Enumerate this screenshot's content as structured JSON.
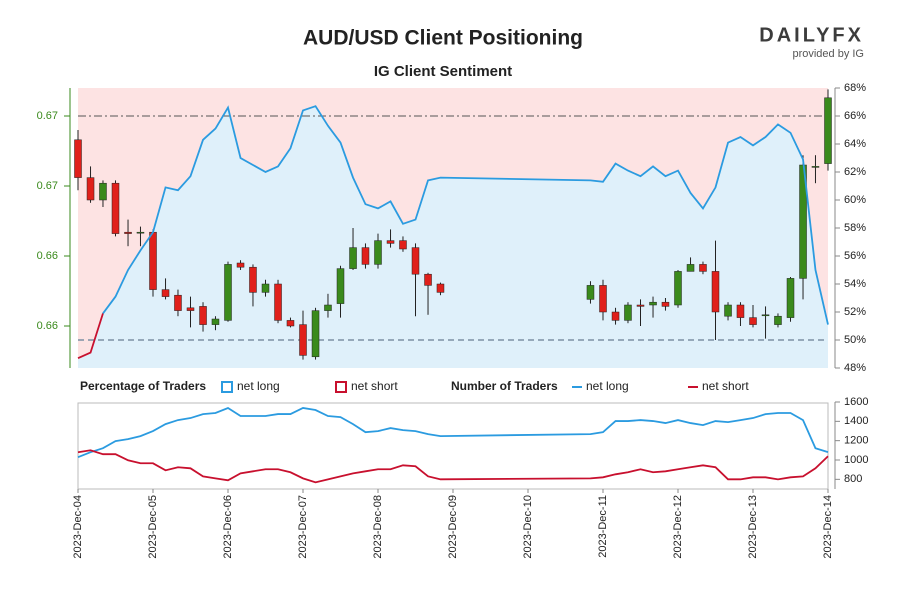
{
  "chart_data": [
    {
      "type": "candlestick",
      "title": "AUD/USD Client Positioning",
      "subtitle": "IG Client Sentiment",
      "logo": {
        "brand": "DAILYFX",
        "provided": "provided by IG"
      },
      "x": [
        0,
        0.167,
        0.333,
        0.5,
        0.667,
        0.833,
        1,
        1.167,
        1.333,
        1.5,
        1.667,
        1.833,
        2,
        2.167,
        2.333,
        2.5,
        2.667,
        2.833,
        3,
        3.167,
        3.333,
        3.5,
        3.667,
        3.833,
        4,
        4.167,
        4.333,
        4.5,
        4.667,
        4.833,
        6.833,
        7,
        7.167,
        7.333,
        7.5,
        7.667,
        7.833,
        8,
        8.167,
        8.333,
        8.5,
        8.667,
        8.833,
        9,
        9.167,
        9.333,
        9.5,
        9.667,
        9.833,
        10
      ],
      "open": [
        0.6683,
        0.6656,
        0.664,
        0.6652,
        0.6617,
        0.6617,
        0.6617,
        0.6576,
        0.6572,
        0.6563,
        0.6564,
        0.6551,
        0.6554,
        0.6595,
        0.6592,
        0.6574,
        0.658,
        0.6554,
        0.6551,
        0.6528,
        0.6561,
        0.6566,
        0.6591,
        0.6606,
        0.6594,
        0.6611,
        0.6611,
        0.6606,
        0.6587,
        0.658,
        0.6569,
        0.6579,
        0.656,
        0.6554,
        0.6565,
        0.6565,
        0.6567,
        0.6565,
        0.6589,
        0.6594,
        0.6589,
        0.6557,
        0.6565,
        0.6556,
        0.6558,
        0.6551,
        0.6556,
        0.6584,
        0.6664,
        0.6666
      ],
      "high": [
        0.669,
        0.6664,
        0.6654,
        0.6654,
        0.6626,
        0.6621,
        0.6619,
        0.6584,
        0.6576,
        0.6571,
        0.6567,
        0.6557,
        0.6596,
        0.6597,
        0.6594,
        0.6583,
        0.6583,
        0.6556,
        0.6561,
        0.6563,
        0.6573,
        0.6593,
        0.662,
        0.6609,
        0.6616,
        0.6619,
        0.6614,
        0.6609,
        0.6588,
        0.6581,
        0.6582,
        0.6583,
        0.6563,
        0.6567,
        0.6569,
        0.6571,
        0.657,
        0.659,
        0.6599,
        0.6596,
        0.6611,
        0.6567,
        0.6567,
        0.6565,
        0.6564,
        0.6559,
        0.6585,
        0.6672,
        0.6672,
        0.6719
      ],
      "low": [
        0.6647,
        0.6638,
        0.6635,
        0.6614,
        0.6607,
        0.6607,
        0.6571,
        0.6569,
        0.6557,
        0.6549,
        0.6546,
        0.6547,
        0.6553,
        0.659,
        0.6564,
        0.6571,
        0.6552,
        0.6549,
        0.6526,
        0.6526,
        0.6556,
        0.6556,
        0.659,
        0.6591,
        0.6591,
        0.6606,
        0.6603,
        0.6557,
        0.6558,
        0.6572,
        0.6566,
        0.6554,
        0.6551,
        0.6552,
        0.655,
        0.6556,
        0.6561,
        0.6563,
        0.6589,
        0.6587,
        0.654,
        0.6554,
        0.655,
        0.6549,
        0.6541,
        0.6549,
        0.6553,
        0.6569,
        0.6652,
        0.6661
      ],
      "close": [
        0.6656,
        0.664,
        0.6652,
        0.6616,
        0.6616,
        0.6617,
        0.6576,
        0.6571,
        0.6561,
        0.6561,
        0.6551,
        0.6555,
        0.6594,
        0.6592,
        0.6574,
        0.658,
        0.6554,
        0.655,
        0.6529,
        0.6561,
        0.6565,
        0.6591,
        0.6606,
        0.6594,
        0.6611,
        0.6609,
        0.6605,
        0.6587,
        0.6579,
        0.6574,
        0.6579,
        0.656,
        0.6554,
        0.6565,
        0.6564,
        0.6567,
        0.6564,
        0.6589,
        0.6594,
        0.6589,
        0.656,
        0.6565,
        0.6556,
        0.6551,
        0.6558,
        0.6557,
        0.6584,
        0.6665,
        0.6664,
        0.6713
      ],
      "up_color": "#3a8a1c",
      "down_color": "#e0201b",
      "xlim": [
        0,
        10
      ],
      "ylim": [
        0.652,
        0.672
      ],
      "yticks": [
        {
          "value": 0.67,
          "label": "0.67"
        },
        {
          "value": 0.665,
          "label": "0.67"
        },
        {
          "value": 0.66,
          "label": "0.66"
        },
        {
          "value": 0.655,
          "label": "0.66"
        }
      ],
      "y2lim": [
        48,
        68
      ],
      "y2ticks": [
        {
          "value": 48,
          "label": "48%"
        },
        {
          "value": 50,
          "label": "50%"
        },
        {
          "value": 52,
          "label": "52%"
        },
        {
          "value": 54,
          "label": "54%"
        },
        {
          "value": 56,
          "label": "56%"
        },
        {
          "value": 58,
          "label": "58%"
        },
        {
          "value": 60,
          "label": "60%"
        },
        {
          "value": 62,
          "label": "62%"
        },
        {
          "value": 64,
          "label": "64%"
        },
        {
          "value": 66,
          "label": "66%"
        },
        {
          "value": 68,
          "label": "68%"
        }
      ],
      "sentiment": {
        "axis": "y2",
        "color": "#2b9be0",
        "color_below": "#c8102e",
        "values": [
          48.7,
          49.1,
          51.9,
          53.1,
          55.0,
          56.4,
          57.7,
          60.9,
          60.7,
          61.7,
          64.3,
          65.1,
          66.6,
          63.0,
          62.5,
          62.0,
          62.4,
          63.7,
          66.4,
          66.7,
          65.3,
          64.1,
          61.6,
          59.7,
          59.4,
          59.9,
          58.3,
          58.6,
          61.4,
          61.6,
          61.4,
          61.3,
          62.6,
          62.1,
          61.7,
          62.4,
          61.7,
          62.1,
          60.5,
          59.4,
          60.9,
          64.1,
          64.5,
          63.9,
          64.5,
          65.4,
          64.8,
          62.9,
          55.0,
          51.1
        ]
      },
      "reference_lines": [
        {
          "value": 50,
          "axis": "y2",
          "style": "dashed",
          "color": "#7d8fa3"
        },
        {
          "value": 66,
          "axis": "y2",
          "style": "dashdot",
          "color": "#555555"
        }
      ],
      "legend_title": "Percentage of Traders",
      "areas": [
        {
          "name": "net long",
          "color": "#2b9be0",
          "fill": "#dff0fa"
        },
        {
          "name": "net short",
          "color": "#c8102e",
          "fill": "#fde3e3"
        }
      ]
    },
    {
      "type": "line",
      "legend_title": "Number of Traders",
      "x": [
        0,
        0.167,
        0.333,
        0.5,
        0.667,
        0.833,
        1,
        1.167,
        1.333,
        1.5,
        1.667,
        1.833,
        2,
        2.167,
        2.333,
        2.5,
        2.667,
        2.833,
        3,
        3.167,
        3.333,
        3.5,
        3.667,
        3.833,
        4,
        4.167,
        4.333,
        4.5,
        4.667,
        4.833,
        6.833,
        7,
        7.167,
        7.333,
        7.5,
        7.667,
        7.833,
        8,
        8.167,
        8.333,
        8.5,
        8.667,
        8.833,
        9,
        9.167,
        9.333,
        9.5,
        9.667,
        9.833,
        10
      ],
      "xlim": [
        0,
        10
      ],
      "xticks": [
        {
          "value": 0,
          "label": "2023-Dec-04"
        },
        {
          "value": 1,
          "label": "2023-Dec-05"
        },
        {
          "value": 2,
          "label": "2023-Dec-06"
        },
        {
          "value": 3,
          "label": "2023-Dec-07"
        },
        {
          "value": 4,
          "label": "2023-Dec-08"
        },
        {
          "value": 5,
          "label": "2023-Dec-09"
        },
        {
          "value": 6,
          "label": "2023-Dec-10"
        },
        {
          "value": 7,
          "label": "2023-Dec-11"
        },
        {
          "value": 8,
          "label": "2023-Dec-12"
        },
        {
          "value": 9,
          "label": "2023-Dec-13"
        },
        {
          "value": 10,
          "label": "2023-Dec-14"
        }
      ],
      "ylim": [
        700,
        1600
      ],
      "yticks": [
        800,
        1000,
        1200,
        1400,
        1600
      ],
      "series": [
        {
          "name": "net long",
          "color": "#2b9be0",
          "values": [
            1029,
            1081,
            1122,
            1195,
            1216,
            1247,
            1299,
            1371,
            1413,
            1434,
            1475,
            1486,
            1538,
            1455,
            1455,
            1455,
            1475,
            1475,
            1538,
            1517,
            1455,
            1444,
            1371,
            1288,
            1299,
            1330,
            1309,
            1299,
            1268,
            1247,
            1268,
            1288,
            1403,
            1403,
            1413,
            1403,
            1382,
            1413,
            1382,
            1361,
            1403,
            1392,
            1413,
            1434,
            1475,
            1486,
            1486,
            1413,
            1122,
            1081
          ]
        },
        {
          "name": "net short",
          "color": "#c8102e",
          "values": [
            1080,
            1101,
            1060,
            1060,
            997,
            966,
            966,
            893,
            925,
            914,
            831,
            810,
            790,
            862,
            883,
            904,
            904,
            873,
            810,
            769,
            800,
            831,
            862,
            883,
            904,
            904,
            945,
            935,
            831,
            800,
            810,
            821,
            852,
            873,
            904,
            873,
            883,
            904,
            925,
            945,
            925,
            800,
            800,
            821,
            821,
            800,
            821,
            831,
            914,
            1039
          ]
        }
      ]
    }
  ]
}
